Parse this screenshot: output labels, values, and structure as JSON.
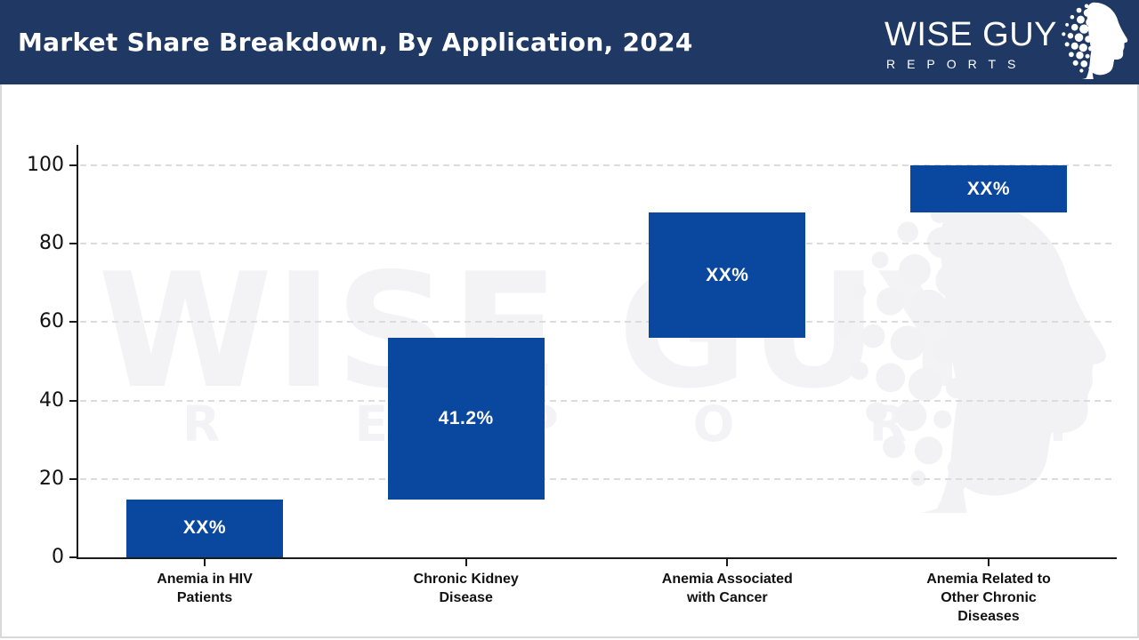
{
  "page": {
    "background": "#ffffff",
    "border_color": "#d9d9d9"
  },
  "header": {
    "bg_color": "#1f3864",
    "title": "Market Share Breakdown, By Application, 2024",
    "logo": {
      "name": "WISE GUY",
      "sub": "REPORTS"
    }
  },
  "watermark": {
    "name": "WISE GUY",
    "sub": "R E P O R T S"
  },
  "chart_data": {
    "type": "bar",
    "variant": "waterfall",
    "title": "Market Share Breakdown, By Application, 2024",
    "categories": [
      "Anemia in HIV\nPatients",
      "Chronic Kidney\nDisease",
      "Anemia Associated\nwith Cancer",
      "Anemia Related to\nOther Chronic\nDiseases"
    ],
    "segments": [
      {
        "category": "Anemia in HIV Patients",
        "start": 0,
        "end": 14.8,
        "label": "XX%"
      },
      {
        "category": "Chronic Kidney Disease",
        "start": 14.8,
        "end": 56.0,
        "label": "41.2%"
      },
      {
        "category": "Anemia Associated with Cancer",
        "start": 56.0,
        "end": 87.9,
        "label": "XX%"
      },
      {
        "category": "Anemia Related to Other Chronic Diseases",
        "start": 87.9,
        "end": 100.0,
        "label": "XX%"
      }
    ],
    "yticks": [
      0,
      20,
      40,
      60,
      80,
      100
    ],
    "ylim": [
      0,
      106
    ],
    "xlabel": "",
    "ylabel": "",
    "grid": "horizontal-dashed",
    "legend": "none",
    "bar_color": "#0a479e",
    "bar_label_color": "#ffffff",
    "axis_color": "#1a1a1a",
    "grid_color": "#dcdcdc"
  }
}
